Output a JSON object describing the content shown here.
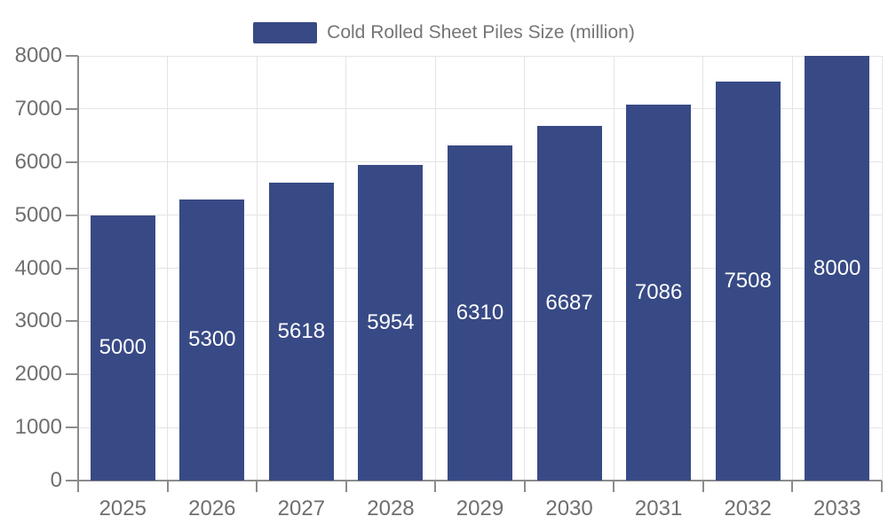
{
  "legend": {
    "label": "Cold Rolled Sheet Piles Size (million)"
  },
  "colors": {
    "bar": "#384A85",
    "value_label": "#ffffff",
    "axis_line": "#8c8c8c",
    "gridline": "#e4e4e4",
    "tick_label": "#6f6f6f",
    "legend_text": "#757575",
    "background": "#ffffff"
  },
  "chart_data": {
    "type": "bar",
    "title": "Cold Rolled Sheet Piles Size (million)",
    "categories": [
      "2025",
      "2026",
      "2027",
      "2028",
      "2029",
      "2030",
      "2031",
      "2032",
      "2033"
    ],
    "values": [
      5000,
      5300,
      5618,
      5954,
      6310,
      6687,
      7086,
      7508,
      8000
    ],
    "xlabel": "",
    "ylabel": "",
    "ylim": [
      0,
      8000
    ],
    "ytick_step": 1000,
    "ytick_labels": [
      "0",
      "1000",
      "2000",
      "3000",
      "4000",
      "5000",
      "6000",
      "7000",
      "8000"
    ],
    "grid": true,
    "legend_position": "top-center",
    "value_labels": "inside-center"
  }
}
